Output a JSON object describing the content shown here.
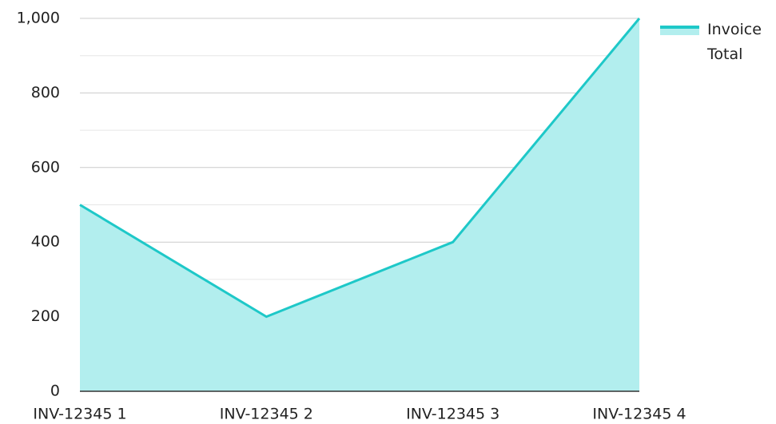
{
  "chart_data": {
    "type": "area",
    "categories": [
      "INV-12345 1",
      "INV-12345 2",
      "INV-12345 3",
      "INV-12345 4"
    ],
    "series": [
      {
        "name": "Invoice Total",
        "color": "#1ec8c8",
        "fill": "#b2eeee",
        "values": [
          500,
          200,
          400,
          1000
        ]
      }
    ],
    "ylim": [
      0,
      1000
    ],
    "yticks": [
      0,
      200,
      400,
      600,
      800,
      {
        "value": 1000,
        "label": "1,000"
      }
    ],
    "minor_yticks": [
      100,
      300,
      500,
      700,
      900
    ],
    "grid": true,
    "legend": "top-right"
  }
}
